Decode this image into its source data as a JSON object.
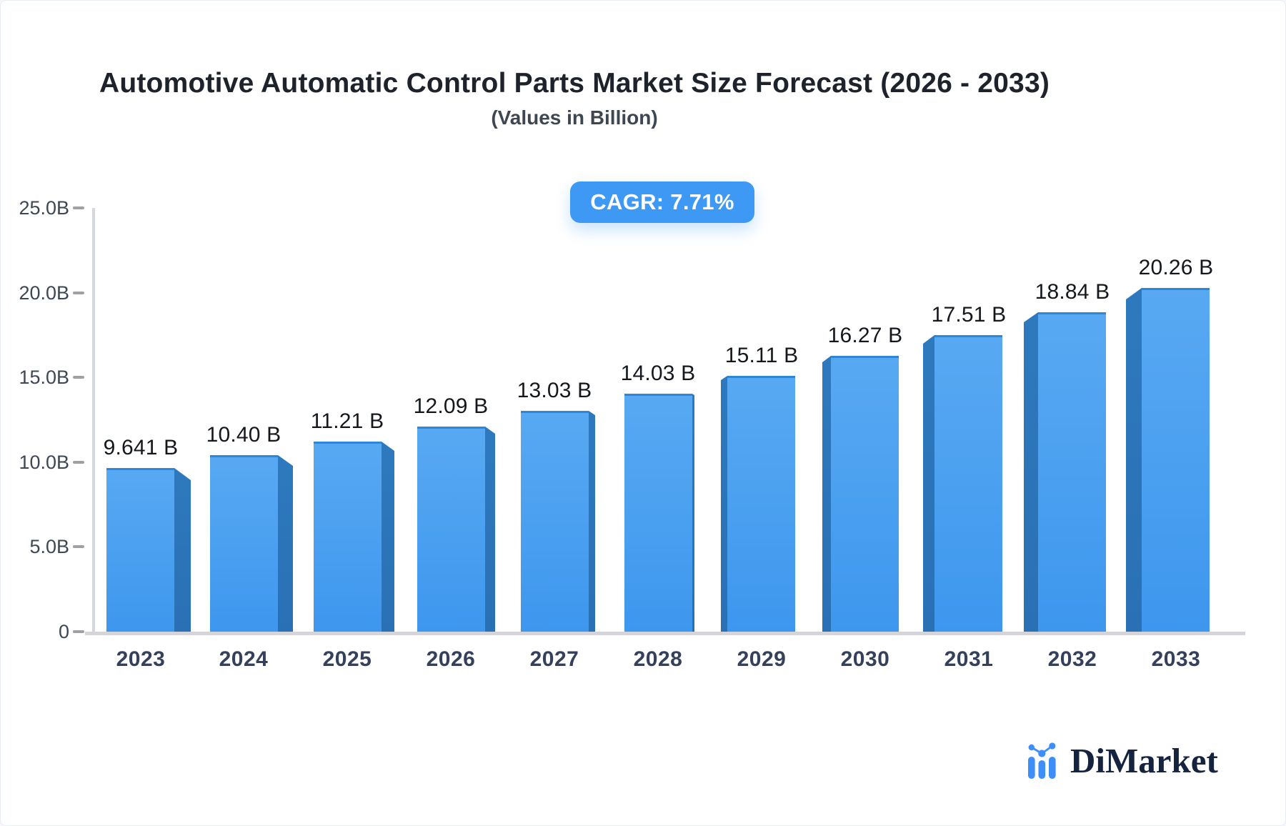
{
  "header": {
    "title": "Automotive Automatic Control Parts Market Size Forecast (2026 - 2033)",
    "subtitle": "(Values in Billion)",
    "cagr_badge": "CAGR: 7.71%",
    "badge_color": "#3d99f4"
  },
  "chart_data": {
    "type": "bar",
    "title": "Automotive Automatic Control Parts Market Size Forecast (2026 - 2033)",
    "unit": "Billion",
    "categories": [
      "2023",
      "2024",
      "2025",
      "2026",
      "2027",
      "2028",
      "2029",
      "2030",
      "2031",
      "2032",
      "2033"
    ],
    "values": [
      9.641,
      10.4,
      11.21,
      12.09,
      13.03,
      14.03,
      15.11,
      16.27,
      17.51,
      18.84,
      20.26
    ],
    "bar_labels": [
      "9.641 B",
      "10.40 B",
      "11.21 B",
      "12.09 B",
      "13.03 B",
      "14.03 B",
      "15.11 B",
      "16.27 B",
      "17.51 B",
      "18.84 B",
      "20.26 B"
    ],
    "xlabel": "",
    "ylabel": "",
    "ylim": [
      0,
      25
    ],
    "y_ticks": [
      {
        "label": "25.0B",
        "value": 25
      },
      {
        "label": "20.0B",
        "value": 20
      },
      {
        "label": "15.0B",
        "value": 15
      },
      {
        "label": "10.0B",
        "value": 10
      },
      {
        "label": "5.0B",
        "value": 5
      },
      {
        "label": "0",
        "value": 0
      }
    ],
    "grid": false,
    "legend_position": "none",
    "colors": {
      "bar_face_top": "#58a9f2",
      "bar_face_bottom": "#3e97ee",
      "bar_face_cap": "#2e86d8",
      "bar_side_top": "#2e79be",
      "bar_side_bottom": "#2a70b4"
    }
  },
  "footer": {
    "brand": "DiMarket",
    "logo_icon": "bar-chart-logo-icon",
    "logo_color": "#3e8ef7"
  }
}
